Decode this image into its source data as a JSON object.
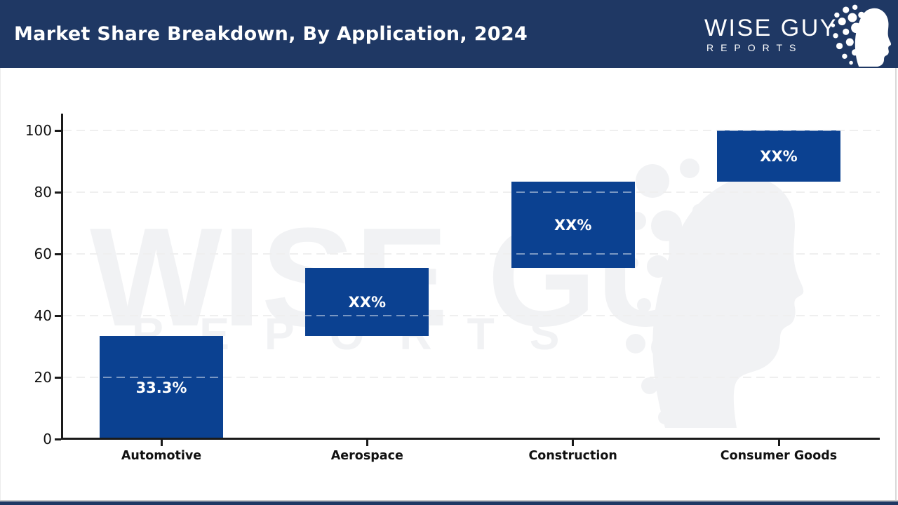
{
  "header": {
    "title": "Market Share Breakdown, By Application, 2024",
    "logo": {
      "line1": "WISE GUY",
      "line2": "REPORTS",
      "head_icon": "dotted-head-profile-icon"
    }
  },
  "watermark": {
    "line1": "WISE GUY",
    "line2": "REPORTS"
  },
  "chart_data": {
    "type": "bar",
    "subtype": "waterfall",
    "title": "Market Share Breakdown, By Application, 2024",
    "categories": [
      "Automotive",
      "Aerospace",
      "Construction",
      "Consumer Goods"
    ],
    "bars": [
      {
        "category": "Automotive",
        "start": 0,
        "end": 33.3,
        "label": "33.3%"
      },
      {
        "category": "Aerospace",
        "start": 33.3,
        "end": 55.5,
        "label": "XX%"
      },
      {
        "category": "Construction",
        "start": 55.5,
        "end": 83.3,
        "label": "XX%"
      },
      {
        "category": "Consumer Goods",
        "start": 83.3,
        "end": 100,
        "label": "XX%"
      }
    ],
    "ylim": [
      0,
      100
    ],
    "yticks": [
      0,
      20,
      40,
      60,
      80,
      100
    ],
    "xlabel": "",
    "ylabel": "",
    "grid": "horizontal-dashed",
    "legend": "none",
    "bar_color": "#0b4191",
    "bar_label_color": "#ffffff"
  },
  "colors": {
    "header_bg": "#1f3864",
    "footer_bar": "#1f3864",
    "bar_blue": "#0b4191",
    "watermark": "#f1f2f4",
    "gridline": "#e2e2e2",
    "axis": "#1a1a1a"
  }
}
